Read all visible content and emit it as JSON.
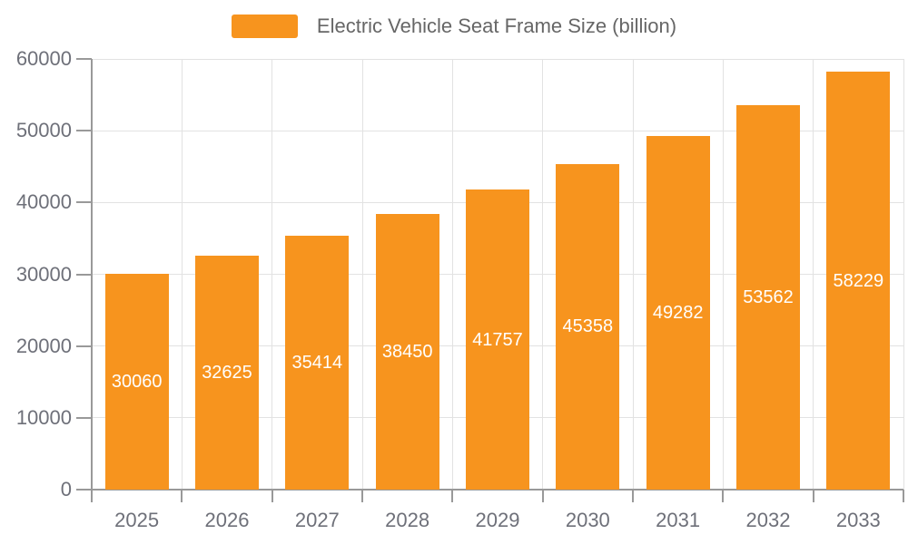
{
  "chart_data": {
    "type": "bar",
    "title": "Electric Vehicle Seat Frame Size (billion)",
    "legend": [
      "Electric Vehicle Seat Frame Size (billion)"
    ],
    "legend_position": "top-center",
    "categories": [
      "2025",
      "2026",
      "2027",
      "2028",
      "2029",
      "2030",
      "2031",
      "2032",
      "2033"
    ],
    "series": [
      {
        "name": "Electric Vehicle Seat Frame Size (billion)",
        "values": [
          30060,
          32625,
          35414,
          38450,
          41757,
          45358,
          49282,
          53562,
          58229
        ]
      }
    ],
    "value_labels": [
      "30060",
      "32625",
      "35414",
      "38450",
      "41757",
      "45358",
      "49282",
      "53562",
      "58229"
    ],
    "xlabel": "",
    "ylabel": "",
    "ylim": [
      0,
      60000
    ],
    "y_ticks": [
      0,
      10000,
      20000,
      30000,
      40000,
      50000,
      60000
    ],
    "y_tick_labels": [
      "0",
      "10000",
      "20000",
      "30000",
      "40000",
      "50000",
      "60000"
    ],
    "grid": "on",
    "colors": {
      "bar": "#f7941e",
      "bar_value_label": "#ffffff",
      "axis_text": "#6e7079",
      "legend_text": "#666666",
      "axis_line": "#999999",
      "gridline": "#e2e2e2"
    }
  }
}
